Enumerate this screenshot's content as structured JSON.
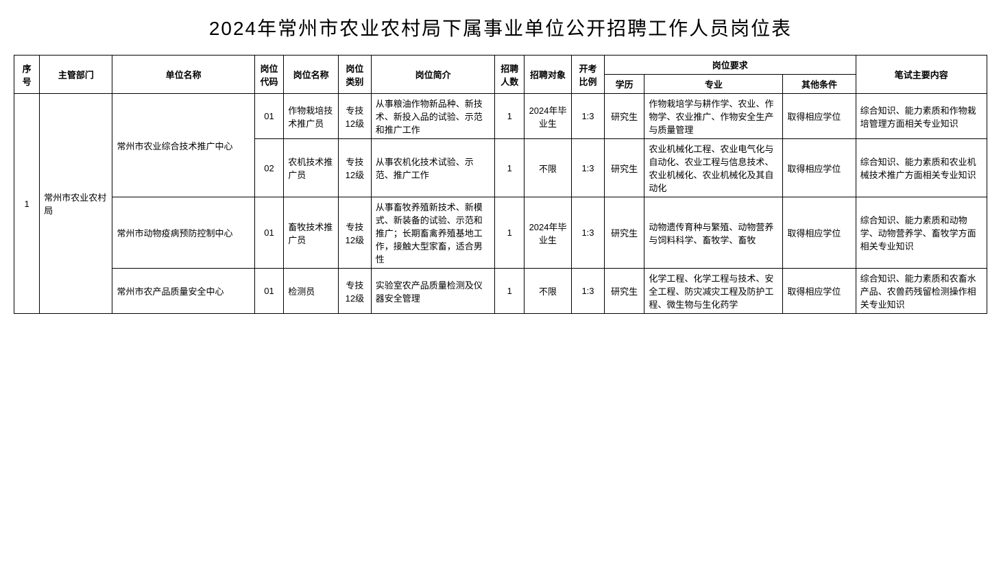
{
  "title": "2024年常州市农业农村局下属事业单位公开招聘工作人员岗位表",
  "headers": {
    "seq": "序号",
    "dept": "主管部门",
    "unit": "单位名称",
    "code": "岗位代码",
    "posname": "岗位名称",
    "postype": "岗位类别",
    "desc": "岗位简介",
    "count": "招聘人数",
    "target": "招聘对象",
    "ratio": "开考比例",
    "req": "岗位要求",
    "edu": "学历",
    "major": "专业",
    "other": "其他条件",
    "exam": "笔试主要内容"
  },
  "table": {
    "seq": "1",
    "dept": "常州市农业农村局",
    "rows": [
      {
        "unit": "常州市农业综合技术推广中心",
        "positions": [
          {
            "code": "01",
            "posname": "作物栽培技术推广员",
            "postype": "专技12级",
            "desc": "从事粮油作物新品种、新技术、新投入品的试验、示范和推广工作",
            "count": "1",
            "target": "2024年毕业生",
            "ratio": "1:3",
            "edu": "研究生",
            "major": "作物栽培学与耕作学、农业、作物学、农业推广、作物安全生产与质量管理",
            "other": "取得相应学位",
            "exam": "综合知识、能力素质和作物栽培管理方面相关专业知识"
          },
          {
            "code": "02",
            "posname": "农机技术推广员",
            "postype": "专技12级",
            "desc": "从事农机化技术试验、示范、推广工作",
            "count": "1",
            "target": "不限",
            "ratio": "1:3",
            "edu": "研究生",
            "major": "农业机械化工程、农业电气化与自动化、农业工程与信息技术、农业机械化、农业机械化及其自动化",
            "other": "取得相应学位",
            "exam": "综合知识、能力素质和农业机械技术推广方面相关专业知识"
          }
        ]
      },
      {
        "unit": "常州市动物疫病预防控制中心",
        "positions": [
          {
            "code": "01",
            "posname": "畜牧技术推广员",
            "postype": "专技12级",
            "desc": "从事畜牧养殖新技术、新模式、新装备的试验、示范和推广；长期畜禽养殖基地工作，接触大型家畜，适合男性",
            "count": "1",
            "target": "2024年毕业生",
            "ratio": "1:3",
            "edu": "研究生",
            "major": "动物遗传育种与繁殖、动物营养与饲料科学、畜牧学、畜牧",
            "other": "取得相应学位",
            "exam": "综合知识、能力素质和动物学、动物营养学、畜牧学方面相关专业知识"
          }
        ]
      },
      {
        "unit": "常州市农产品质量安全中心",
        "positions": [
          {
            "code": "01",
            "posname": "检测员",
            "postype": "专技12级",
            "desc": "实验室农产品质量检测及仪器安全管理",
            "count": "1",
            "target": "不限",
            "ratio": "1:3",
            "edu": "研究生",
            "major": "化学工程、化学工程与技术、安全工程、防灾减灾工程及防护工程、微生物与生化药学",
            "other": "取得相应学位",
            "exam": "综合知识、能力素质和农畜水产品、农兽药残留检测操作相关专业知识"
          }
        ]
      }
    ]
  }
}
